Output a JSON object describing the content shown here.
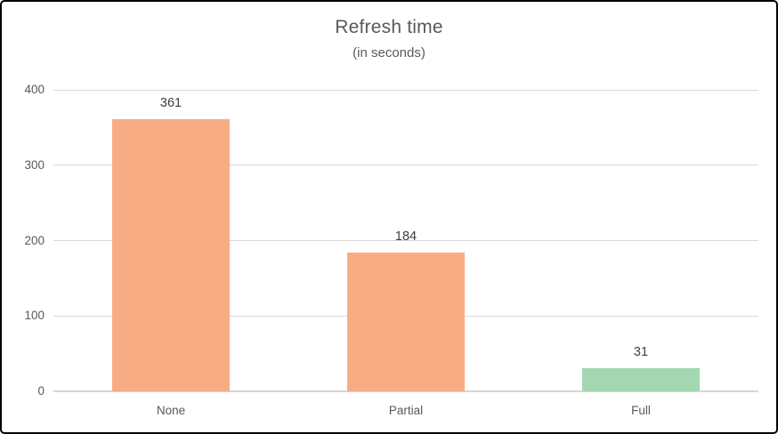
{
  "chart": {
    "title": "Refresh time",
    "subtitle": "(in seconds)"
  },
  "chart_data": {
    "type": "bar",
    "title": "Refresh time",
    "subtitle": "(in seconds)",
    "categories": [
      "None",
      "Partial",
      "Full"
    ],
    "values": [
      361,
      184,
      31
    ],
    "data_labels": [
      "361",
      "184",
      "31"
    ],
    "bar_colors": [
      "#F8AC84",
      "#F8AC84",
      "#A3D7B2"
    ],
    "xlabel": "",
    "ylabel": "",
    "ylim": [
      0,
      400
    ],
    "yticks": [
      0,
      100,
      200,
      300,
      400
    ],
    "grid": true,
    "legend": false
  },
  "colors": {
    "bar_orange": "#F8AC84",
    "bar_green": "#A3D7B2",
    "gridline": "#D9D9D9",
    "axis_line": "#D6D6D6",
    "tick_text": "#595959",
    "title_text": "#595959",
    "value_label_text": "#404040",
    "frame_border": "#000000",
    "background": "#FFFFFF"
  }
}
